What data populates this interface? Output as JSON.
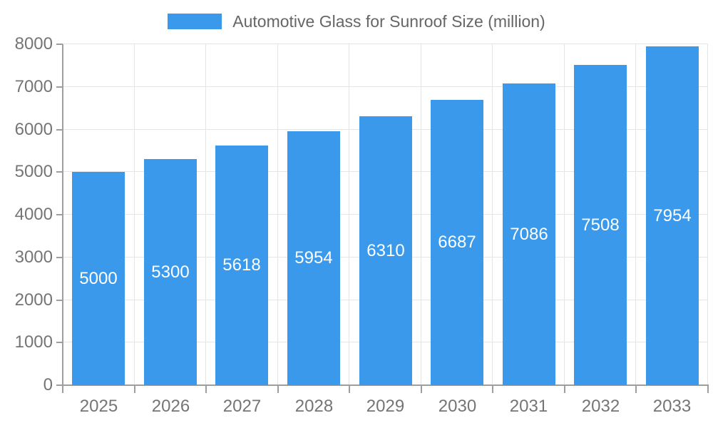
{
  "chart_data": {
    "type": "bar",
    "title": "Automotive Glass for Sunroof Size (million)",
    "categories": [
      "2025",
      "2026",
      "2027",
      "2028",
      "2029",
      "2030",
      "2031",
      "2032",
      "2033"
    ],
    "values": [
      5000,
      5300,
      5618,
      5954,
      6310,
      6687,
      7086,
      7508,
      7954
    ],
    "xlabel": "",
    "ylabel": "",
    "ylim": [
      0,
      8000
    ],
    "ytick_step": 1000,
    "yticks": [
      0,
      1000,
      2000,
      3000,
      4000,
      5000,
      6000,
      7000,
      8000
    ],
    "grid": true,
    "bar_value_labels_shown": true,
    "legend_position": "top-center"
  },
  "legend": {
    "swatch_icon": "blue-rect-swatch",
    "label": "Automotive Glass for Sunroof Size (million)"
  },
  "colors": {
    "bar": "#3b99ec",
    "bar_label": "#ffffff",
    "axis": "#9e9e9e",
    "grid": "#e5e5e5",
    "tick_label": "#757575",
    "legend_text": "#666666",
    "background": "#ffffff"
  }
}
